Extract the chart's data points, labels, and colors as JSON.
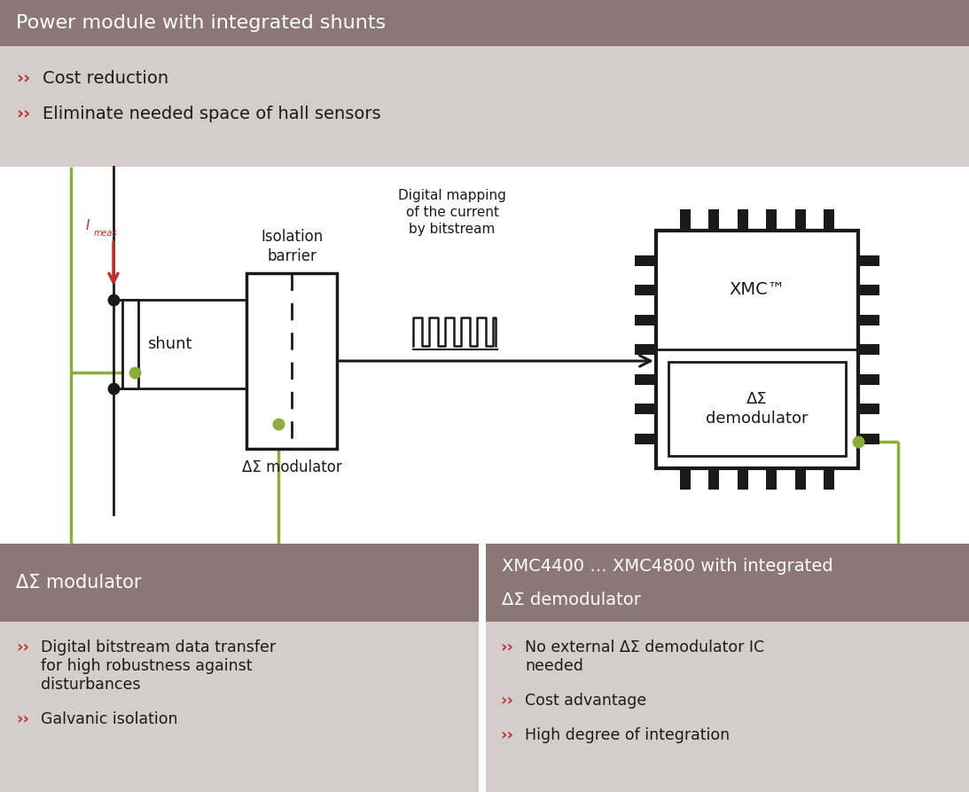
{
  "title_bg_color": "#8B7777",
  "title_text": "Power module with integrated shunts",
  "title_text_color": "#FFFFFF",
  "top_bg_color": "#D5CDCC",
  "bullet_color": "#BE3030",
  "top_bullets": [
    "Cost reduction",
    "Eliminate needed space of hall sensors"
  ],
  "diagram_bg_color": "#FFFFFF",
  "green_color": "#8AAD3C",
  "black_color": "#1A1A1A",
  "red_color": "#BE3030",
  "dark_brown": "#8B7777",
  "light_gray": "#D5CDCC",
  "bottom_left_title": "ΔΣ modulator",
  "bottom_right_title_line1": "XMC4400 … XMC4800 with integrated",
  "bottom_right_title_line2": "ΔΣ demodulator",
  "bottom_left_bullets": [
    "Digital bitstream data transfer\nfor high robustness against\ndisturbances",
    "Galvanic isolation"
  ],
  "bottom_right_bullets": [
    "No external ΔΣ demodulator IC\nneeded",
    "Cost advantage",
    "High degree of integration"
  ],
  "xmc_label": "XMC™",
  "demod_label": "ΔΣ\ndemodulator",
  "isolation_label": "Isolation\nbarrier",
  "digital_label": "Digital mapping\nof the current\nby bitstream",
  "modulator_label": "ΔΣ modulator",
  "shunt_label": "shunt",
  "imeas_label": "I",
  "imeas_sub": "meas"
}
